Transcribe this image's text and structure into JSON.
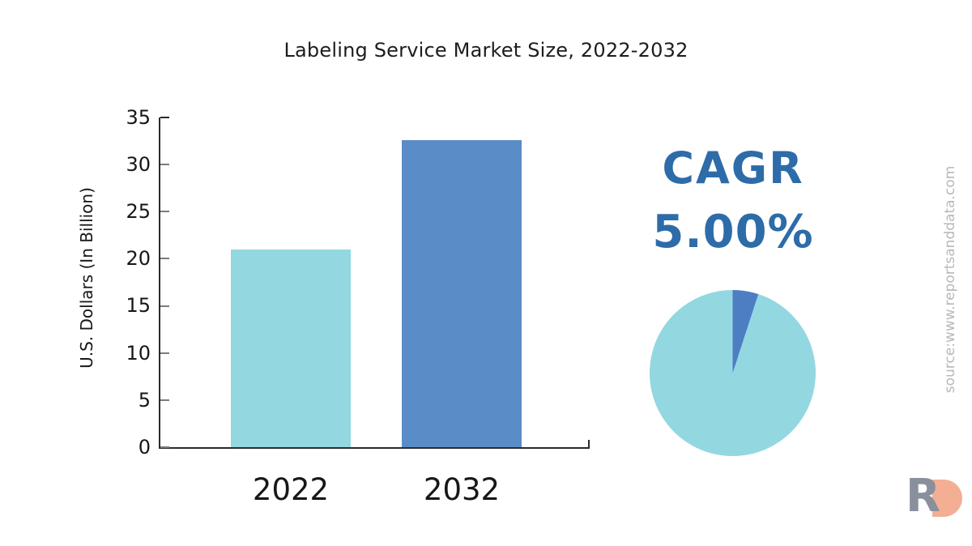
{
  "title": "Labeling Service Market Size, 2022-2032",
  "chart_data": {
    "type": "bar",
    "title": "Labeling Service Market Size, 2022-2032",
    "categories": [
      "2022",
      "2032"
    ],
    "values": [
      21,
      32.6
    ],
    "xlabel": "",
    "ylabel": "U.S. Dollars (In Billion)",
    "ylim": [
      0,
      35
    ],
    "yticks": [
      0,
      5,
      10,
      15,
      20,
      25,
      30,
      35
    ],
    "grid": false,
    "legend": "none",
    "bar_colors": [
      "#93d7e1",
      "#5a8cc8"
    ]
  },
  "cagr": {
    "label": "CAGR",
    "value": "5.00%",
    "text_color": "#2d6ca8",
    "pie": {
      "type": "pie",
      "slice_pct": 5,
      "slice_color": "#4d7ec4",
      "body_color": "#93d7e1"
    }
  },
  "source": {
    "text": "source:www.reportsanddata.com"
  },
  "logo": {
    "letter_r": "R"
  }
}
